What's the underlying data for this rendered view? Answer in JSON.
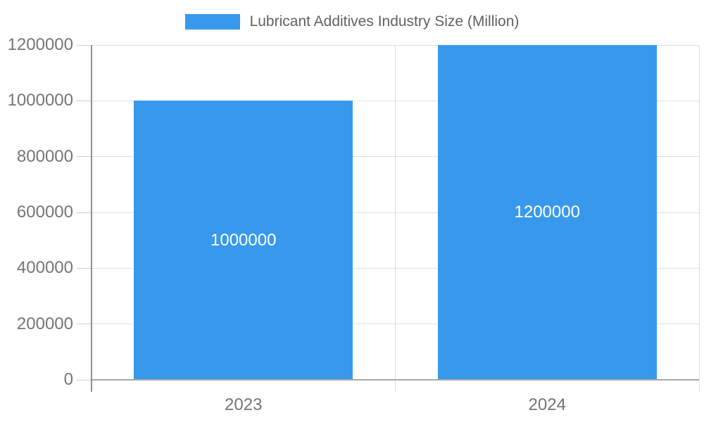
{
  "legend": {
    "label": "Lubricant Additives Industry Size (Million)"
  },
  "chart_data": {
    "type": "bar",
    "title": "Lubricant Additives Industry Size (Million)",
    "series_name": "Lubricant Additives Industry Size (Million)",
    "categories": [
      "2023",
      "2024"
    ],
    "values": [
      1000000,
      1200000
    ],
    "bar_value_labels": [
      "1000000",
      "1200000"
    ],
    "y_tick_labels": [
      "0",
      "200000",
      "400000",
      "600000",
      "800000",
      "1000000",
      "1200000"
    ],
    "ylim": [
      0,
      1200000
    ],
    "ytick_step": 200000,
    "xlabel": "",
    "ylabel": "",
    "grid": true,
    "legend_position": "top",
    "colors": {
      "bar": "#3899EC",
      "grid": "#e0e0e0",
      "axis": "#a8a8a8",
      "tick_text": "#757575",
      "legend_text": "#616161",
      "bar_label_text": "#ffffff"
    }
  }
}
